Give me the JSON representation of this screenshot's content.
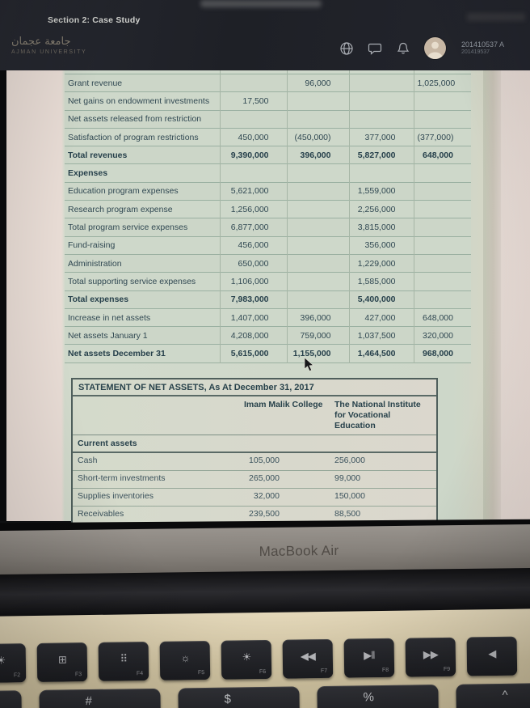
{
  "header": {
    "section_title": "Section 2: Case Study",
    "brand_arabic": "جامعة عجمان",
    "brand_english": "AJMAN UNIVERSITY",
    "user_id_line1": "201410537 A",
    "user_id_line2": "201419537"
  },
  "activities_table": {
    "rows": [
      {
        "label": "Grant revenue",
        "v1": "",
        "v2": "96,000",
        "v3": "",
        "v4": "1,025,000",
        "bold": false
      },
      {
        "label": "Net gains on endowment investments",
        "v1": "17,500",
        "v2": "",
        "v3": "",
        "v4": "",
        "bold": false
      },
      {
        "label": "Net assets released from restriction",
        "v1": "",
        "v2": "",
        "v3": "",
        "v4": "",
        "bold": false
      },
      {
        "label": "Satisfaction of program restrictions",
        "v1": "450,000",
        "v2": "(450,000)",
        "v3": "377,000",
        "v4": "(377,000)",
        "bold": false
      },
      {
        "label": "Total revenues",
        "v1": "9,390,000",
        "v2": "396,000",
        "v3": "5,827,000",
        "v4": "648,000",
        "bold": true
      },
      {
        "label": "Expenses",
        "v1": "",
        "v2": "",
        "v3": "",
        "v4": "",
        "bold": true
      },
      {
        "label": "Education program expenses",
        "v1": "5,621,000",
        "v2": "",
        "v3": "1,559,000",
        "v4": "",
        "bold": false
      },
      {
        "label": "Research program expense",
        "v1": "1,256,000",
        "v2": "",
        "v3": "2,256,000",
        "v4": "",
        "bold": false
      },
      {
        "label": "Total program service expenses",
        "v1": "6,877,000",
        "v2": "",
        "v3": "3,815,000",
        "v4": "",
        "bold": false
      },
      {
        "label": "Fund-raising",
        "v1": "456,000",
        "v2": "",
        "v3": "356,000",
        "v4": "",
        "bold": false
      },
      {
        "label": "Administration",
        "v1": "650,000",
        "v2": "",
        "v3": "1,229,000",
        "v4": "",
        "bold": false
      },
      {
        "label": "Total supporting service expenses",
        "v1": "1,106,000",
        "v2": "",
        "v3": "1,585,000",
        "v4": "",
        "bold": false
      },
      {
        "label": "Total expenses",
        "v1": "7,983,000",
        "v2": "",
        "v3": "5,400,000",
        "v4": "",
        "bold": true
      },
      {
        "label": "Increase in net assets",
        "v1": "1,407,000",
        "v2": "396,000",
        "v3": "427,000",
        "v4": "648,000",
        "bold": false
      },
      {
        "label": "Net assets January 1",
        "v1": "4,208,000",
        "v2": "759,000",
        "v3": "1,037,500",
        "v4": "320,000",
        "bold": false
      },
      {
        "label": "Net assets December 31",
        "v1": "5,615,000",
        "v2": "1,155,000",
        "v3": "1,464,500",
        "v4": "968,000",
        "bold": true
      }
    ]
  },
  "net_assets_table": {
    "title": "STATEMENT OF NET ASSETS, As At December 31, 2017",
    "columns": [
      "Imam Malik College",
      "The National Institute for Vocational Education"
    ],
    "section_header": "Current assets",
    "rows": [
      {
        "label": "Cash",
        "college": "105,000",
        "institute": "256,000"
      },
      {
        "label": "Short-term investments",
        "college": "265,000",
        "institute": "99,000"
      },
      {
        "label": "Supplies inventories",
        "college": "32,000",
        "institute": "150,000"
      },
      {
        "label": "Receivables",
        "college": "239,500",
        "institute": "88,500"
      }
    ]
  },
  "laptop": {
    "brand": "MacBook Air",
    "function_keys": [
      {
        "icon": "brightness-up-icon",
        "glyph": "☀",
        "label": "F2"
      },
      {
        "icon": "mission-control-icon",
        "glyph": "⊞",
        "label": "F3"
      },
      {
        "icon": "launchpad-icon",
        "glyph": "⠿",
        "label": "F4"
      },
      {
        "icon": "keyboard-dim-icon",
        "glyph": "☼",
        "label": "F5"
      },
      {
        "icon": "keyboard-bright-icon",
        "glyph": "☀",
        "label": "F6"
      },
      {
        "icon": "rewind-icon",
        "glyph": "◀◀",
        "label": "F7"
      },
      {
        "icon": "play-pause-icon",
        "glyph": "▶‖",
        "label": "F8"
      },
      {
        "icon": "fast-forward-icon",
        "glyph": "▶▶",
        "label": "F9"
      },
      {
        "icon": "mute-icon",
        "glyph": "◀",
        "label": ""
      }
    ],
    "symbol_keys": [
      "@",
      "#",
      "$",
      "%",
      "^"
    ]
  },
  "colors": {
    "header_bg": "#1f2128",
    "table_bg": "#ccd6c8",
    "table_text": "#304852",
    "page_margin": "#e8dcd5",
    "deck": "#d2c5a3"
  }
}
